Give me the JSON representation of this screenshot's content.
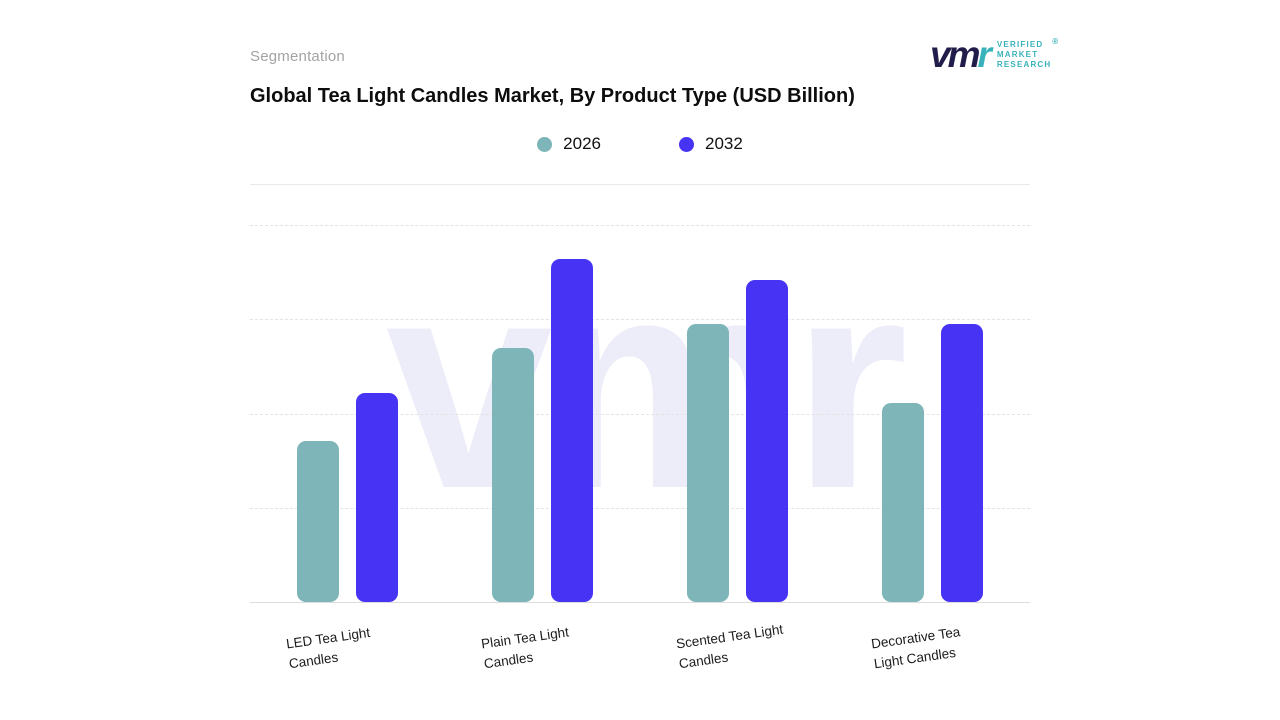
{
  "header": {
    "eyebrow": "Segmentation",
    "title": "Global Tea Light Candles Market, By Product Type (USD Billion)"
  },
  "logo": {
    "mark_primary": "vm",
    "mark_accent": "r",
    "lines": [
      "VERIFIED",
      "MARKET",
      "RESEARCH"
    ],
    "registered": "®",
    "accent_color": "#38b2ba",
    "dark_color": "#211d4b"
  },
  "legend": [
    {
      "label": "2026",
      "color": "#7db5b8"
    },
    {
      "label": "2032",
      "color": "#4733f3"
    }
  ],
  "watermark": "vmr",
  "chart_data": {
    "type": "bar",
    "title": "Global Tea Light Candles Market, By Product Type (USD Billion)",
    "categories": [
      "LED Tea Light Candles",
      "Plain Tea Light Candles",
      "Scented Tea Light Candles",
      "Decorative Tea Light Candles"
    ],
    "series": [
      {
        "name": "2026",
        "color": "#7db5b8",
        "values": [
          4.7,
          7.4,
          8.1,
          5.8
        ]
      },
      {
        "name": "2032",
        "color": "#4733f3",
        "values": [
          6.1,
          10.0,
          9.4,
          8.1
        ]
      }
    ],
    "xlabel": "",
    "ylabel": "",
    "ylim": [
      0,
      11
    ],
    "grid": "dashed-horizontal",
    "legend_position": "top-center",
    "gridline_positions_pct": [
      0,
      25,
      50,
      75
    ]
  }
}
